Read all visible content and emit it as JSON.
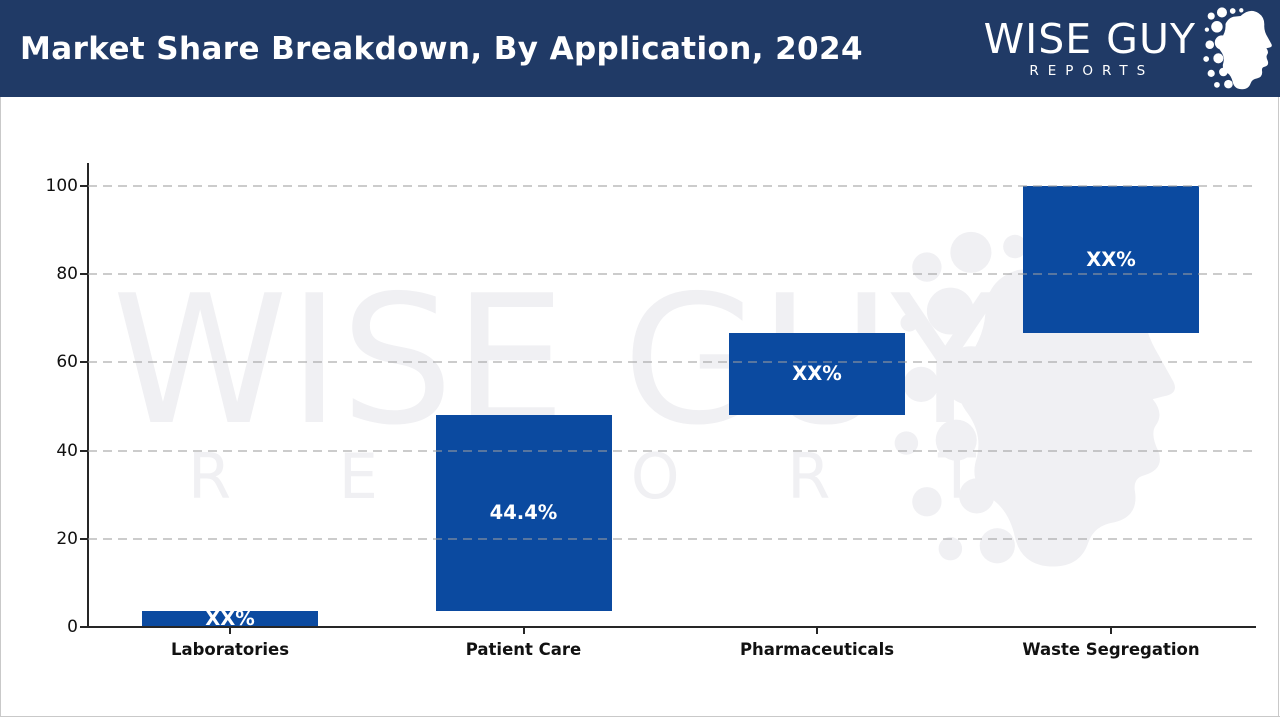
{
  "header": {
    "title": "Market Share Breakdown, By Application, 2024",
    "logo": {
      "line1": "WISE GUY",
      "line2": "REPORTS"
    }
  },
  "watermark": {
    "line1": "WISE GUY",
    "line2": "R E P O R T S"
  },
  "colors": {
    "header_bg": "#203a66",
    "bar": "#0b4aa0",
    "grid": "#c9c9c9",
    "axis": "#262626",
    "watermark_gray": "#f0f0f3",
    "bar_label_text": "#ffffff",
    "title_text": "#ffffff"
  },
  "chart_data": {
    "type": "bar",
    "subtype": "floating-waterfall-segments",
    "title": "Market Share Breakdown, By Application, 2024",
    "xlabel": "",
    "ylabel": "",
    "categories": [
      "Laboratories",
      "Patient Care",
      "Pharmaceuticals",
      "Waste Segregation"
    ],
    "segments": [
      {
        "category": "Laboratories",
        "start": 0,
        "end": 3.7,
        "label": "XX%"
      },
      {
        "category": "Patient Care",
        "start": 3.7,
        "end": 48.1,
        "label": "44.4%"
      },
      {
        "category": "Pharmaceuticals",
        "start": 48.1,
        "end": 66.7,
        "label": "XX%"
      },
      {
        "category": "Waste Segregation",
        "start": 66.7,
        "end": 100,
        "label": "XX%"
      }
    ],
    "bar_labels": [
      "XX%",
      "44.4%",
      "XX%",
      "XX%"
    ],
    "yticks": [
      0,
      20,
      40,
      60,
      80,
      100
    ],
    "ylim": [
      0,
      105
    ],
    "grid": "horizontal-dashed",
    "legend": "none"
  }
}
